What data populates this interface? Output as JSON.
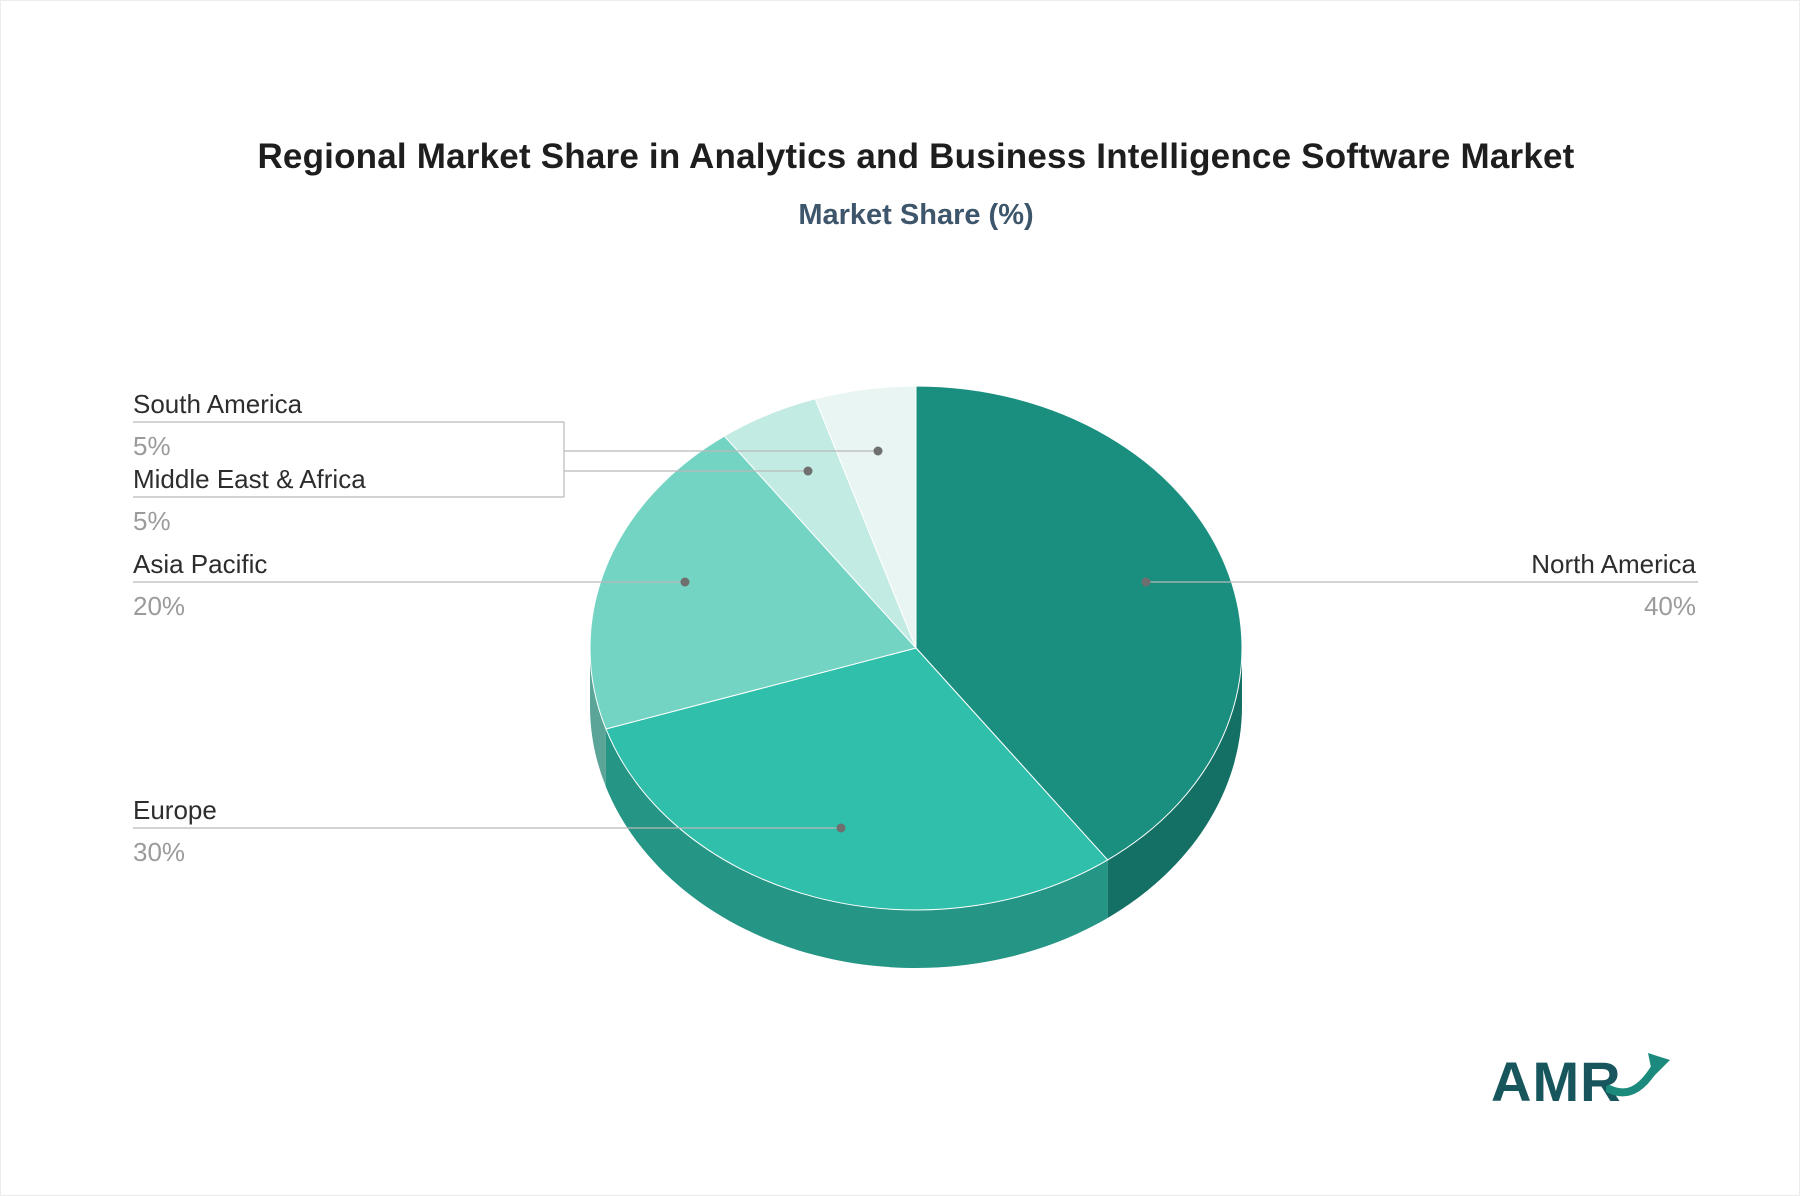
{
  "header": {
    "title": "Regional Market Share in Analytics and Business Intelligence Software Market",
    "subtitle": "Market Share (%)",
    "subtitle_color": "#3e566b"
  },
  "logo": {
    "text": "AMR",
    "color": "#17565c",
    "arrow_color": "#1b8a7d"
  },
  "chart_data": {
    "type": "pie",
    "style": "3d",
    "title": "Regional Market Share in Analytics and Business Intelligence Software Market",
    "subtitle": "Market Share (%)",
    "unit": "%",
    "start_angle_deg": -90,
    "direction": "clockwise",
    "legend_position": "callout-labels",
    "line_color": "#b9b9b9",
    "dot_color": "#6f6f6f",
    "slices": [
      {
        "label": "North America",
        "value": 40,
        "pct_label": "40%",
        "color": "#1a8f80",
        "label_side": "right"
      },
      {
        "label": "Europe",
        "value": 30,
        "pct_label": "30%",
        "color": "#2fbfab",
        "label_side": "left"
      },
      {
        "label": "Asia Pacific",
        "value": 20,
        "pct_label": "20%",
        "color": "#74d4c3",
        "label_side": "left"
      },
      {
        "label": "Middle East & Africa",
        "value": 5,
        "pct_label": "5%",
        "color": "#c2ebe3",
        "label_side": "left"
      },
      {
        "label": "South America",
        "value": 5,
        "pct_label": "5%",
        "color": "#e9f5f2",
        "label_side": "left"
      }
    ]
  }
}
